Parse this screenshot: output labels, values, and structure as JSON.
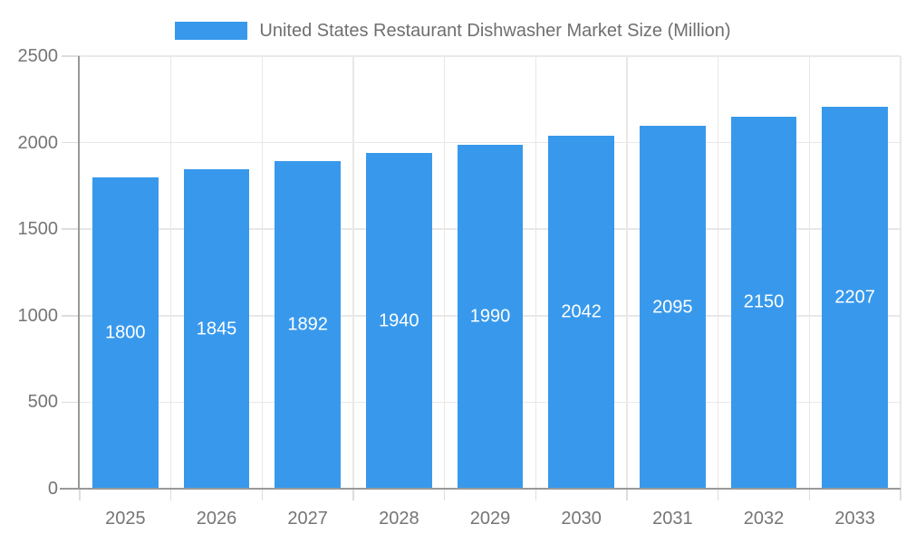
{
  "chart_data": {
    "type": "bar",
    "title": "United States Restaurant Dishwasher Market Size (Million)",
    "categories": [
      "2025",
      "2026",
      "2027",
      "2028",
      "2029",
      "2030",
      "2031",
      "2032",
      "2033"
    ],
    "series": [
      {
        "name": "United States Restaurant Dishwasher Market Size (Million)",
        "values": [
          1800,
          1845,
          1892,
          1940,
          1990,
          2042,
          2095,
          2150,
          2207
        ]
      }
    ],
    "bar_value_labels": [
      "1800",
      "1845",
      "1892",
      "1940",
      "1990",
      "2042",
      "2095",
      "2150",
      "2207"
    ],
    "xlabel": "",
    "ylabel": "",
    "ylim": [
      0,
      2500
    ],
    "yticks": [
      0,
      500,
      1000,
      1500,
      2000,
      2500
    ],
    "grid": true,
    "legend_position": "top",
    "colors": {
      "bar": "#3899ec",
      "bar_label": "#ffffff",
      "axis_line": "#999999",
      "grid_line": "#e8e8e8",
      "tick_line": "#dddddd",
      "axis_label": "#757575",
      "legend_text": "#6f6f6f",
      "background": "#ffffff"
    }
  }
}
